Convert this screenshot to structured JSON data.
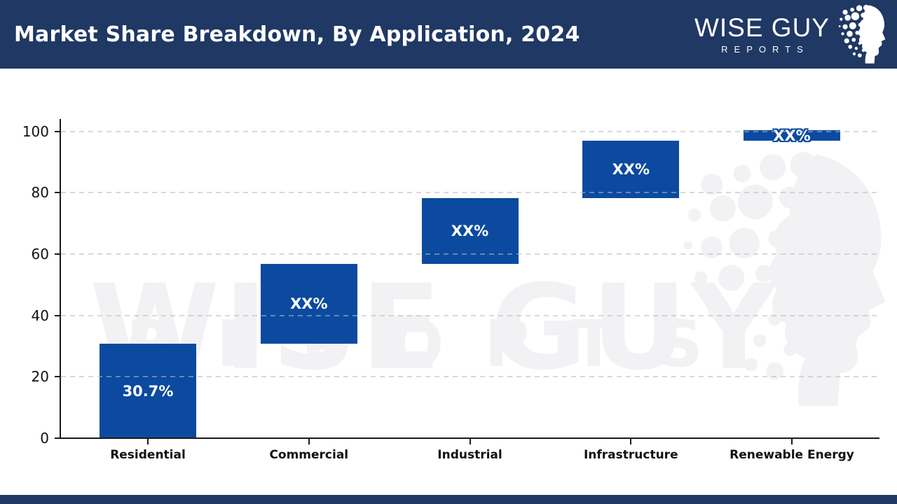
{
  "header": {
    "title": "Market Share Breakdown, By Application, 2024"
  },
  "logo": {
    "line1": "WISE GUY",
    "line2": "REPORTS"
  },
  "watermark": {
    "line1": "WISE GUY",
    "line2": "REPORTS"
  },
  "colors": {
    "header_bg": "#1f3864",
    "footer_bg": "#1f3864",
    "bar": "#0b4a9f",
    "bar_label": "#ffffff",
    "axis": "#1a1a1a",
    "watermark": "#f2f2f4"
  },
  "chart_data": {
    "type": "bar",
    "subtype": "waterfall",
    "title": "Market Share Breakdown, By Application, 2024",
    "categories": [
      "Residential",
      "Commercial",
      "Industrial",
      "Infrastructure",
      "Renewable Energy"
    ],
    "segments": [
      {
        "category": "Residential",
        "start": 0,
        "end": 30.7,
        "label": "30.7%"
      },
      {
        "category": "Commercial",
        "start": 30.7,
        "end": 56.8,
        "label": "XX%"
      },
      {
        "category": "Industrial",
        "start": 56.8,
        "end": 78.2,
        "label": "XX%"
      },
      {
        "category": "Infrastructure",
        "start": 78.2,
        "end": 97.0,
        "label": "XX%"
      },
      {
        "category": "Renewable Energy",
        "start": 97.0,
        "end": 100.3,
        "label": "XX%"
      }
    ],
    "yticks": [
      0,
      20,
      40,
      60,
      80,
      100
    ],
    "ylim": [
      0,
      104
    ],
    "xlabel": "",
    "ylabel": "",
    "grid": "horizontal-dashed",
    "legend": "none",
    "bar_color": "#0b4a9f"
  }
}
